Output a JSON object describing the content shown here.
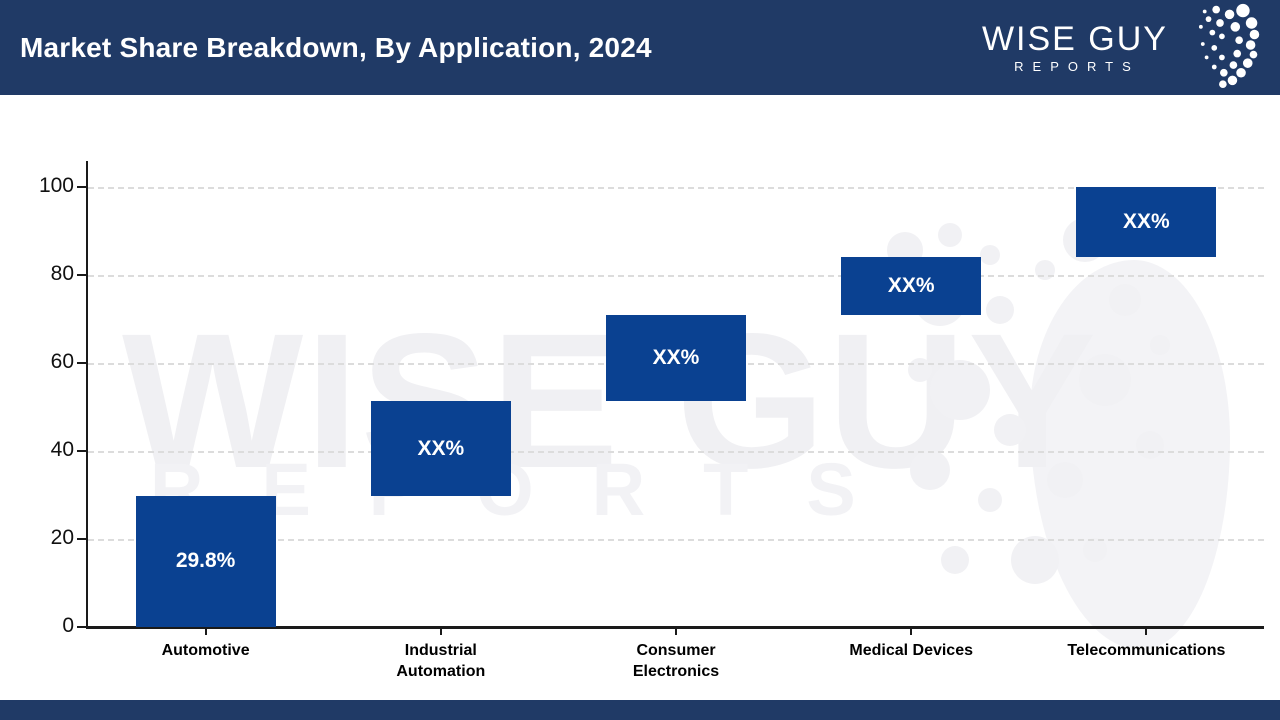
{
  "header": {
    "title": "Market Share Breakdown, By Application, 2024"
  },
  "logo": {
    "wordmark": "WISE GUY",
    "sub": "REPORTS"
  },
  "watermark": {
    "line1": "WISE GUY",
    "line2": "REPORTS"
  },
  "colors": {
    "header_bg": "#203a66",
    "footer_bg": "#203a66",
    "bar": "#0a4191",
    "bar_label_text": "#ffffff",
    "gridline": "#dcdcdc",
    "axis": "#1a1a1a",
    "watermark": "#f0f0f3"
  },
  "chart_data": {
    "type": "bar",
    "subtype": "waterfall",
    "title": "Market Share Breakdown, By Application, 2024",
    "categories": [
      "Automotive",
      "Industrial\nAutomation",
      "Consumer\nElectronics",
      "Medical Devices",
      "Telecommunications"
    ],
    "segments": [
      {
        "category": "Automotive",
        "start": 0,
        "end": 29.8,
        "value": 29.8,
        "label": "29.8%"
      },
      {
        "category": "Industrial Automation",
        "start": 29.8,
        "end": 51.3,
        "value": 21.5,
        "label": "XX%"
      },
      {
        "category": "Consumer Electronics",
        "start": 51.3,
        "end": 71.0,
        "value": 19.7,
        "label": "XX%"
      },
      {
        "category": "Medical Devices",
        "start": 71.0,
        "end": 84.0,
        "value": 13.0,
        "label": "XX%"
      },
      {
        "category": "Telecommunications",
        "start": 84.0,
        "end": 100.0,
        "value": 16.0,
        "label": "XX%"
      }
    ],
    "xlabel": "",
    "ylabel": "",
    "y_ticks": [
      0,
      20,
      40,
      60,
      80,
      100
    ],
    "ylim": [
      0,
      105
    ],
    "grid": "horizontal-dashed",
    "legend": "none"
  }
}
